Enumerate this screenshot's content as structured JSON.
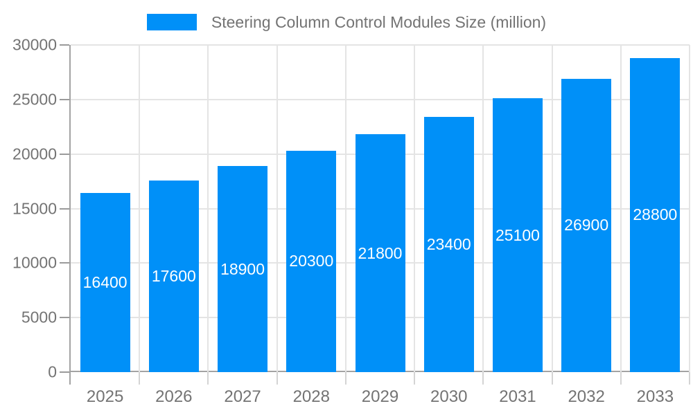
{
  "legend": {
    "label": "Steering Column Control Modules Size (million)"
  },
  "chart_data": {
    "type": "bar",
    "title": "Steering Column Control Modules Size (million)",
    "categories": [
      "2025",
      "2026",
      "2027",
      "2028",
      "2029",
      "2030",
      "2031",
      "2032",
      "2033"
    ],
    "series": [
      {
        "name": "Steering Column Control Modules Size (million)",
        "values": [
          16400,
          17600,
          18900,
          20300,
          21800,
          23400,
          25100,
          26900,
          28800
        ]
      }
    ],
    "values": [
      16400,
      17600,
      18900,
      20300,
      21800,
      23400,
      25100,
      26900,
      28800
    ],
    "bar_value_labels": [
      "16400",
      "17600",
      "18900",
      "20300",
      "21800",
      "23400",
      "25100",
      "26900",
      "28800"
    ],
    "xlabel": "",
    "ylabel": "",
    "ylim": [
      0,
      30000
    ],
    "yticks": [
      0,
      5000,
      10000,
      15000,
      20000,
      25000,
      30000
    ],
    "grid": "on",
    "legend_position": "top-center",
    "colors": {
      "bar": "#0090f8",
      "bar_label_text": "#ffffff",
      "axis_text": "#737373",
      "axis_line": "#a3a3a3",
      "gridline": "#e4e4e4",
      "x_tick": "#d4d4d4",
      "y_tick": "#9a9a9a",
      "background": "#ffffff"
    }
  }
}
